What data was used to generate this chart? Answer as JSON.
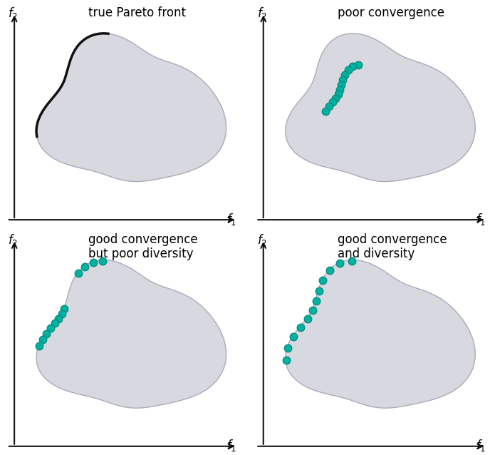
{
  "background_color": "#ffffff",
  "blob_fill_color": "#d8d8e0",
  "blob_edge_color": "#b0b0b8",
  "pareto_line_color": "#111111",
  "dot_color": "#00b0a0",
  "dot_edge_color": "#008878",
  "titles": [
    "true Pareto front",
    "poor convergence",
    "good convergence\nbut poor diversity",
    "good convergence\nand diversity"
  ],
  "xlabel": "f_1",
  "ylabel": "f_2",
  "arrow_color": "#111111",
  "title_fontsize": 12,
  "label_fontsize": 12
}
